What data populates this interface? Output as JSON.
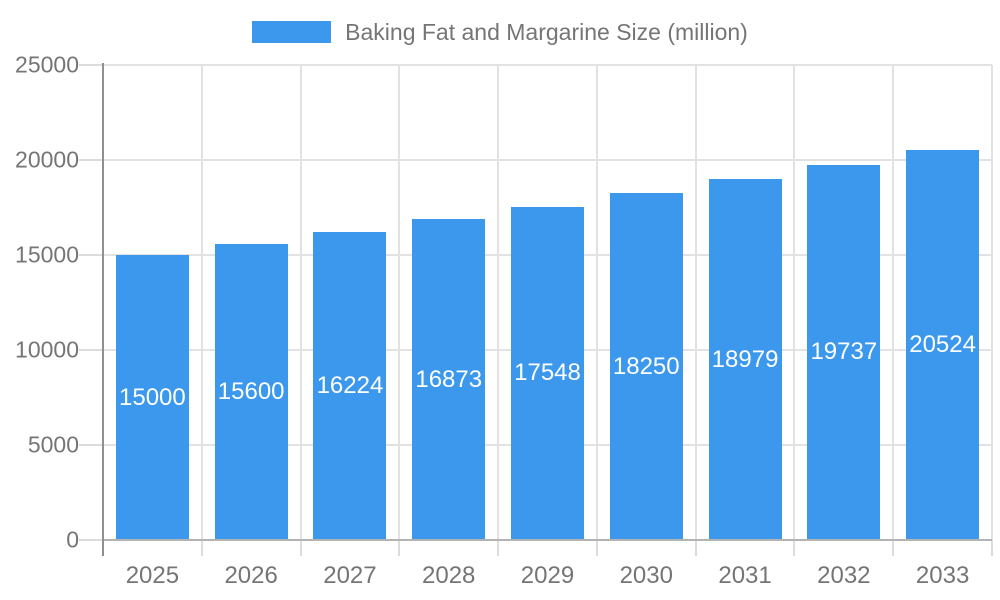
{
  "legend": {
    "label": "Baking Fat and Margarine Size (million)"
  },
  "colors": {
    "bar": "#3b98ec",
    "grid": "#e2e2e2",
    "tick": "#dcdcdc",
    "axis": "#8f8f8f",
    "baseline": "#b3b3b3",
    "axis_text": "#757575",
    "bar_label_text": "#ffffff",
    "background": "#ffffff"
  },
  "chart_data": {
    "type": "bar",
    "title": "Baking Fat and Margarine Size (million)",
    "categories": [
      "2025",
      "2026",
      "2027",
      "2028",
      "2029",
      "2030",
      "2031",
      "2032",
      "2033"
    ],
    "values": [
      15000,
      15600,
      16224,
      16873,
      17548,
      18250,
      18979,
      19737,
      20524
    ],
    "xlabel": "",
    "ylabel": "",
    "ylim": [
      0,
      25000
    ],
    "yticks": [
      0,
      5000,
      10000,
      15000,
      20000,
      25000
    ],
    "grid": true,
    "legend_position": "top",
    "bar_value_labels": "inside-middle"
  }
}
